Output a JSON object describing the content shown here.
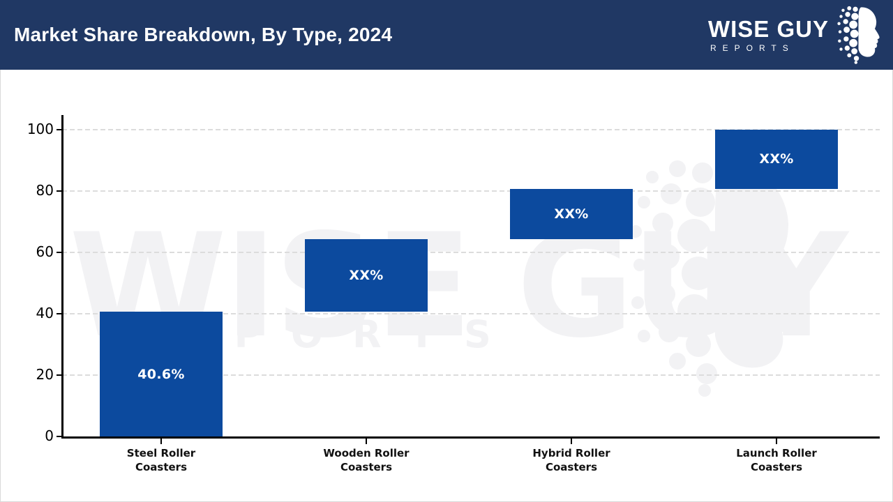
{
  "header": {
    "title": "Market Share Breakdown, By Type, 2024",
    "logo": {
      "line1": "WISE GUY",
      "line2": "REPORTS"
    }
  },
  "watermark": {
    "line1": "WISE GUY",
    "line2": "REPORTS"
  },
  "colors": {
    "header_bg": "#203864",
    "bar": "#0C4A9E",
    "bar_label": "#FFFFFF",
    "grid": "#DCDCDC",
    "axis": "#000000",
    "watermark": "#F2F2F4"
  },
  "chart_data": {
    "type": "bar",
    "subtype": "waterfall",
    "title": "Market Share Breakdown, By Type, 2024",
    "categories": [
      "Steel Roller Coasters",
      "Wooden Roller Coasters",
      "Hybrid Roller Coasters",
      "Launch Roller Coasters"
    ],
    "segments": [
      {
        "category": "Steel Roller Coasters",
        "start": 0,
        "end": 40.6,
        "label": "40.6%"
      },
      {
        "category": "Wooden Roller Coasters",
        "start": 40.6,
        "end": 64.3,
        "label": "XX%"
      },
      {
        "category": "Hybrid Roller Coasters",
        "start": 64.3,
        "end": 80.7,
        "label": "XX%"
      },
      {
        "category": "Launch Roller Coasters",
        "start": 80.7,
        "end": 100,
        "label": "XX%"
      }
    ],
    "yticks": [
      0,
      20,
      40,
      60,
      80,
      100
    ],
    "ylim": [
      0,
      100
    ],
    "xlabel": "",
    "ylabel": "",
    "grid": "horizontal-dashed",
    "legend": "none",
    "bar_color": "#0C4A9E",
    "label_color": "#FFFFFF"
  }
}
